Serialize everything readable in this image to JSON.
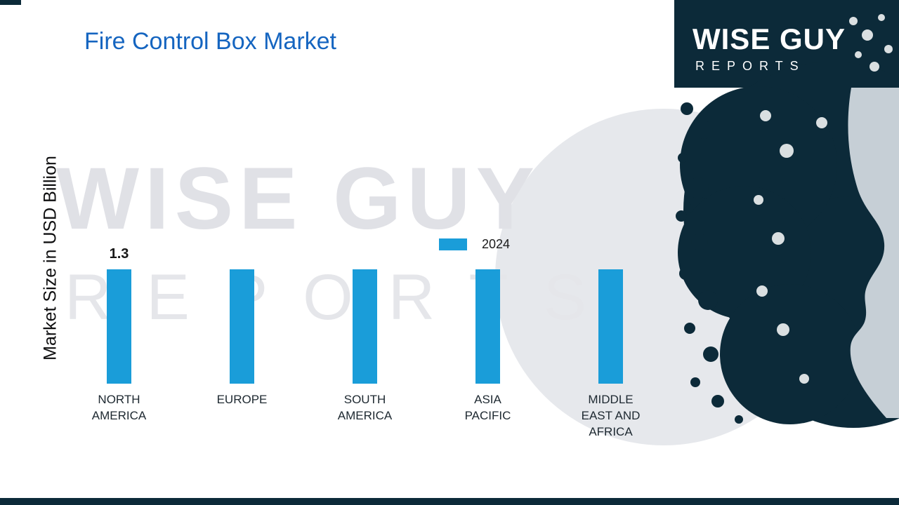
{
  "logo": {
    "name_line": "WISE GUY",
    "sub_line": "REPORTS"
  },
  "watermark": {
    "name_line": "WISE GUY",
    "sub_line": "REPORTS"
  },
  "colors": {
    "title": "#1565c0",
    "bar": "#1a9dd9",
    "dark_navy": "#0c2a39",
    "watermark_gray": "#e0e1e6"
  },
  "chart_data": {
    "type": "bar",
    "title": "Fire Control Box Market",
    "ylabel": "Market Size in USD Billion",
    "xlabel": "",
    "categories": [
      "NORTH AMERICA",
      "EUROPE",
      "SOUTH AMERICA",
      "ASIA PACIFIC",
      "MIDDLE EAST AND AFRICA"
    ],
    "values": [
      1.3,
      1.3,
      1.3,
      1.3,
      1.3
    ],
    "data_labels": [
      "1.3",
      "",
      "",
      "",
      ""
    ],
    "ylim": [
      0,
      1.6
    ],
    "grid": false,
    "legend": [
      {
        "label": "2024",
        "color": "#1a9dd9"
      }
    ],
    "legend_position": "top-right"
  }
}
